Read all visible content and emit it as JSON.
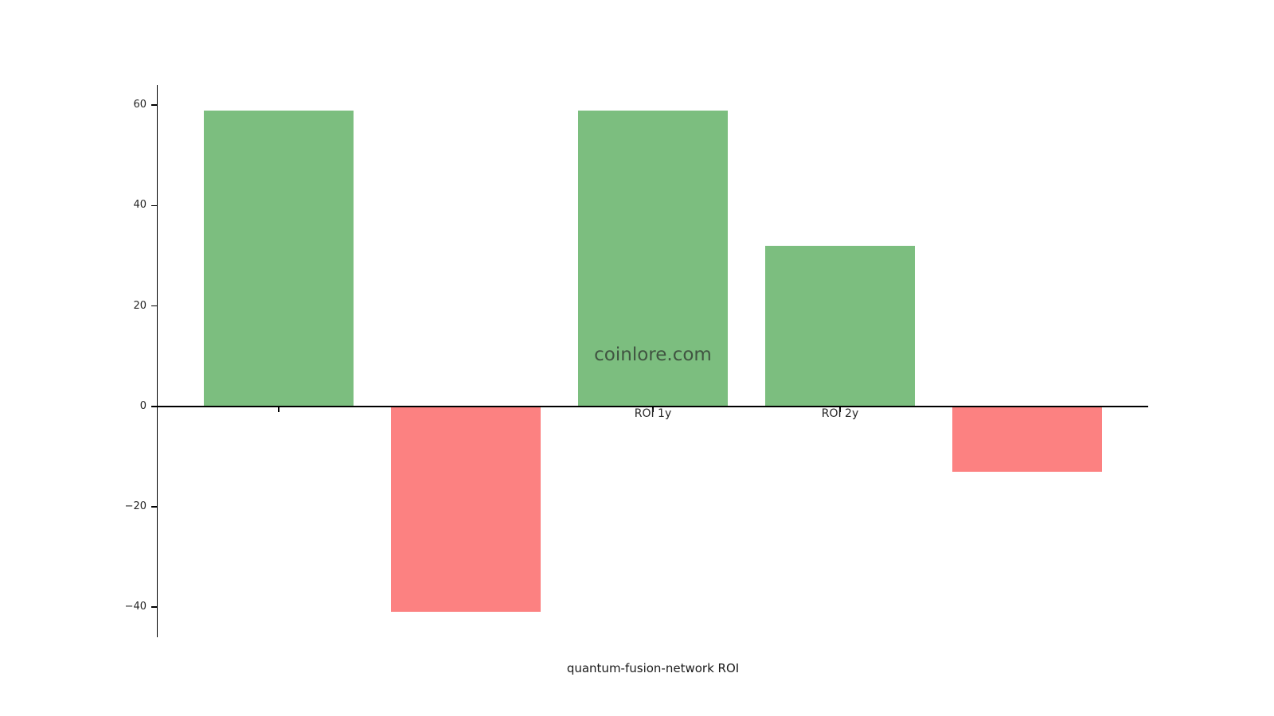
{
  "watermark": {
    "text": "coinlore.com"
  },
  "chart_data": {
    "type": "bar",
    "categories": [
      "",
      "",
      "ROI 1y",
      "ROI 2y",
      ""
    ],
    "values": [
      59,
      -41,
      59,
      32,
      -13
    ],
    "title": "",
    "xlabel": "quantum-fusion-network ROI",
    "ylabel": "",
    "ylim": [
      -46,
      64
    ],
    "yticks": [
      60,
      40,
      20,
      0,
      -20,
      -40
    ],
    "grid": false,
    "legend": false,
    "watermark": "coinlore.com",
    "colors": {
      "positive_bar": "#7cbe7f",
      "negative_bar": "#fc8181",
      "axis": "#000000",
      "tick_text": "#262626",
      "watermark_text": "#303630"
    }
  }
}
